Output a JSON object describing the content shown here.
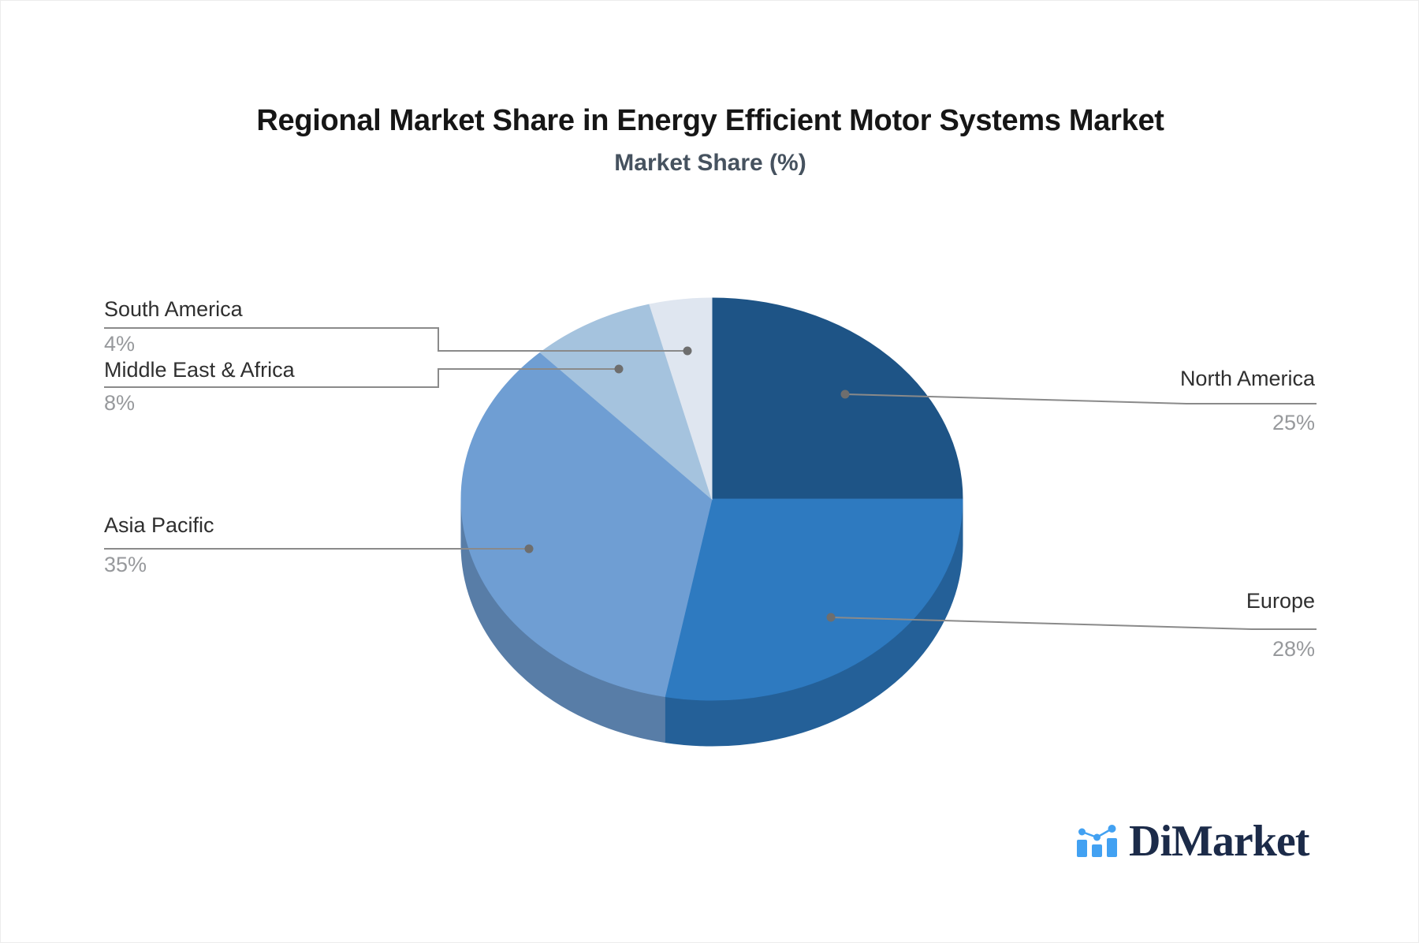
{
  "title": "Regional Market Share in Energy Efficient Motor Systems Market",
  "subtitle": "Market Share (%)",
  "logo": {
    "text": "DiMarket",
    "icon": "bar-line-chart-icon",
    "icon_color": "#42a1f2",
    "text_color": "#1c2b49"
  },
  "leader_style": {
    "line_color": "#8a8a8a",
    "dot_color": "#6e6e6e"
  },
  "chart_data": {
    "type": "pie",
    "title": "Regional Market Share in Energy Efficient Motor Systems Market",
    "value_label": "Market Share (%)",
    "unit": "%",
    "style": "3d",
    "direction": "clockwise",
    "start_angle": "top",
    "labels_position": "outside-callouts",
    "series": [
      {
        "name": "North America",
        "value": 25,
        "color": "#1e5486"
      },
      {
        "name": "Europe",
        "value": 28,
        "color": "#2e7ac0"
      },
      {
        "name": "Asia Pacific",
        "value": 35,
        "color": "#6f9ed3"
      },
      {
        "name": "Middle East & Africa",
        "value": 8,
        "color": "#a5c3de"
      },
      {
        "name": "South America",
        "value": 4,
        "color": "#dfe6f0"
      }
    ]
  }
}
